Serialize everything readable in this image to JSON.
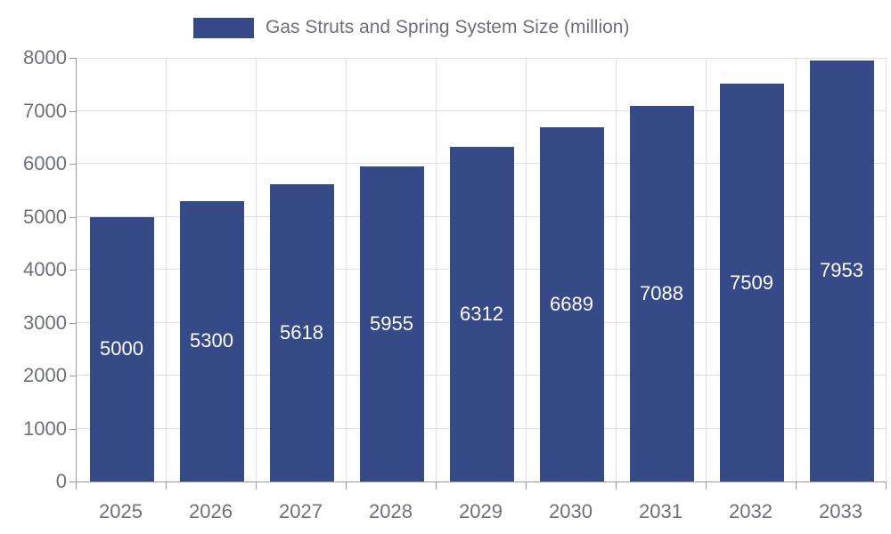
{
  "legend": {
    "label": "Gas Struts and Spring System Size (million)"
  },
  "chart_data": {
    "type": "bar",
    "title": "Gas Struts and Spring System Size (million)",
    "categories": [
      "2025",
      "2026",
      "2027",
      "2028",
      "2029",
      "2030",
      "2031",
      "2032",
      "2033"
    ],
    "values": [
      5000,
      5300,
      5618,
      5955,
      6312,
      6689,
      7088,
      7509,
      7953
    ],
    "xlabel": "",
    "ylabel": "",
    "ylim": [
      0,
      8000
    ],
    "yticks": [
      0,
      1000,
      2000,
      3000,
      4000,
      5000,
      6000,
      7000,
      8000
    ],
    "grid": true,
    "legend_position": "top-center",
    "bar_color": "#354a86",
    "value_label_color": "#ffffff",
    "axis_text_color": "#6e7079",
    "axis_line_color": "#9a9a9a",
    "gridline_color": "#e0e0e0"
  }
}
